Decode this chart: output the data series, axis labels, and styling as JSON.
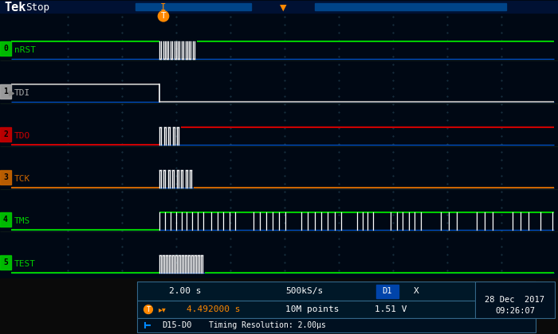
{
  "bg_color": "#000814",
  "channels": [
    "TEST",
    "TMS",
    "TCK",
    "TDO",
    "TDI",
    "nRST"
  ],
  "channel_colors": [
    "#00cc00",
    "#00cc00",
    "#cc6600",
    "#cc0000",
    "#aaaaaa",
    "#00cc00"
  ],
  "channel_numbers": [
    "5",
    "4",
    "3",
    "2",
    "1",
    "0"
  ],
  "channel_number_colors": [
    "#00cc00",
    "#00cc00",
    "#cc6600",
    "#cc0000",
    "#aaaaaa",
    "#00cc00"
  ],
  "trigger_marker_color": "#ff8800",
  "status_bar": {
    "time_div": "2.00 s",
    "sample_rate": "500kS/s",
    "cursor_label": "D1",
    "x_label": "X",
    "trigger_time": "4.492000 s",
    "points": "10M points",
    "voltage": "1.51 V",
    "date": "28 Dec  2017",
    "time": "09:26:07",
    "channel_label": "D15-D0",
    "timing_res": "Timing Resolution: 2.00μs"
  }
}
